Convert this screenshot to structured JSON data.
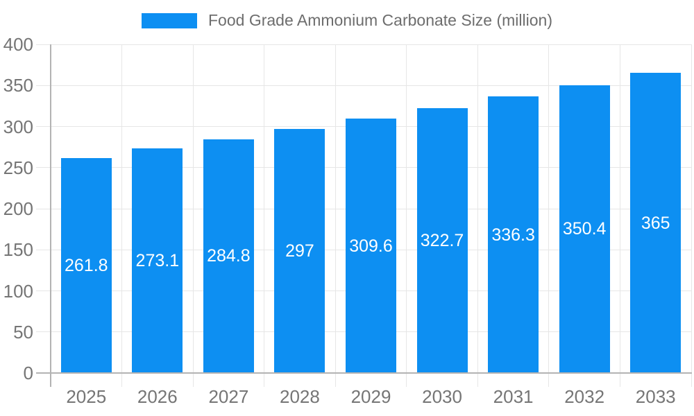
{
  "chart_data": {
    "type": "bar",
    "title": "Food Grade Ammonium Carbonate Size (million)",
    "categories": [
      "2025",
      "2026",
      "2027",
      "2028",
      "2029",
      "2030",
      "2031",
      "2032",
      "2033"
    ],
    "values": [
      261.8,
      273.1,
      284.8,
      297,
      309.6,
      322.7,
      336.3,
      350.4,
      365
    ],
    "value_labels": [
      "261.8",
      "273.1",
      "284.8",
      "297",
      "309.6",
      "322.7",
      "336.3",
      "350.4",
      "365"
    ],
    "xlabel": "",
    "ylabel": "",
    "ylim": [
      0,
      400
    ],
    "yticks": [
      0,
      50,
      100,
      150,
      200,
      250,
      300,
      350,
      400
    ],
    "ytick_labels": [
      "0",
      "50",
      "100",
      "150",
      "200",
      "250",
      "300",
      "350",
      "400"
    ],
    "grid": "both",
    "legend_position": "top",
    "colors": {
      "bar": "#0d8ff2",
      "bar_label_text": "#ffffff",
      "axis_text": "#757575",
      "legend_text": "#6d6d6d",
      "gridline": "#e6e6e6",
      "axis_line": "#b3b3b3",
      "background": "#ffffff"
    }
  }
}
